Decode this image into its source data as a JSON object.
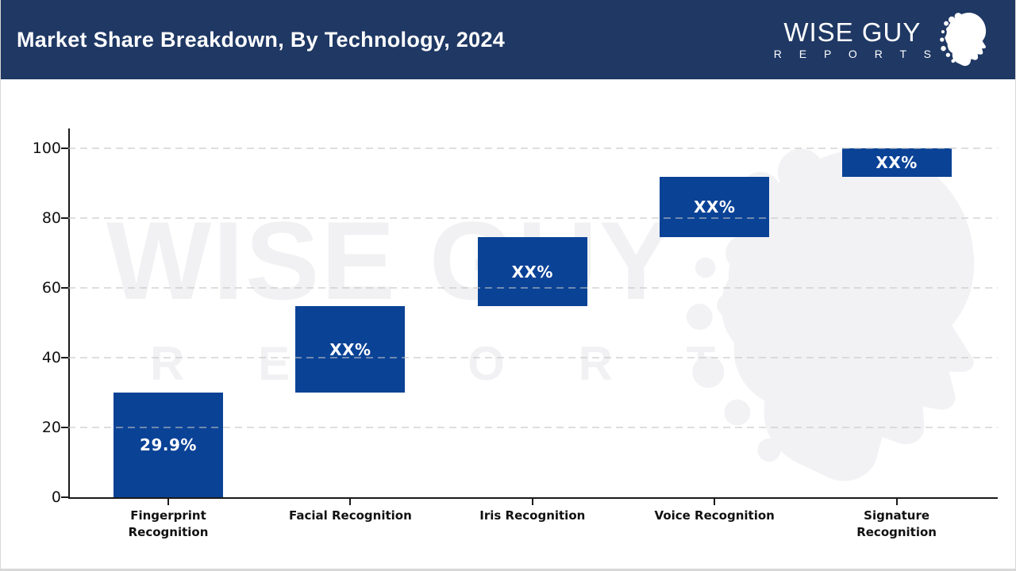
{
  "header": {
    "title": "Market Share Breakdown, By Technology, 2024",
    "bg_color": "#1f3864",
    "logo": {
      "line1": "WISE GUY",
      "line2": "R E P O R T S"
    }
  },
  "watermark": {
    "line1": "WISE GUY",
    "line2": "R E P O R T S"
  },
  "chart_data": {
    "type": "bar",
    "subtype": "waterfall",
    "title": "Market Share Breakdown, By Technology, 2024",
    "categories": [
      "Fingerprint\nRecognition",
      "Facial Recognition",
      "Iris Recognition",
      "Voice Recognition",
      "Signature\nRecognition"
    ],
    "segments": [
      {
        "category": "Fingerprint Recognition",
        "label": "29.9%",
        "start": 0,
        "end": 29.9
      },
      {
        "category": "Facial Recognition",
        "label": "XX%",
        "start": 29.9,
        "end": 54.8
      },
      {
        "category": "Iris Recognition",
        "label": "XX%",
        "start": 54.8,
        "end": 74.5
      },
      {
        "category": "Voice Recognition",
        "label": "XX%",
        "start": 74.5,
        "end": 91.8
      },
      {
        "category": "Signature Recognition",
        "label": "XX%",
        "start": 91.8,
        "end": 100
      }
    ],
    "y_ticks": [
      0,
      20,
      40,
      60,
      80,
      100
    ],
    "ylim": [
      0,
      105
    ],
    "xlabel": "",
    "ylabel": "",
    "bar_color": "#0a4296",
    "grid": "horizontal-dashed",
    "legend": "none"
  }
}
